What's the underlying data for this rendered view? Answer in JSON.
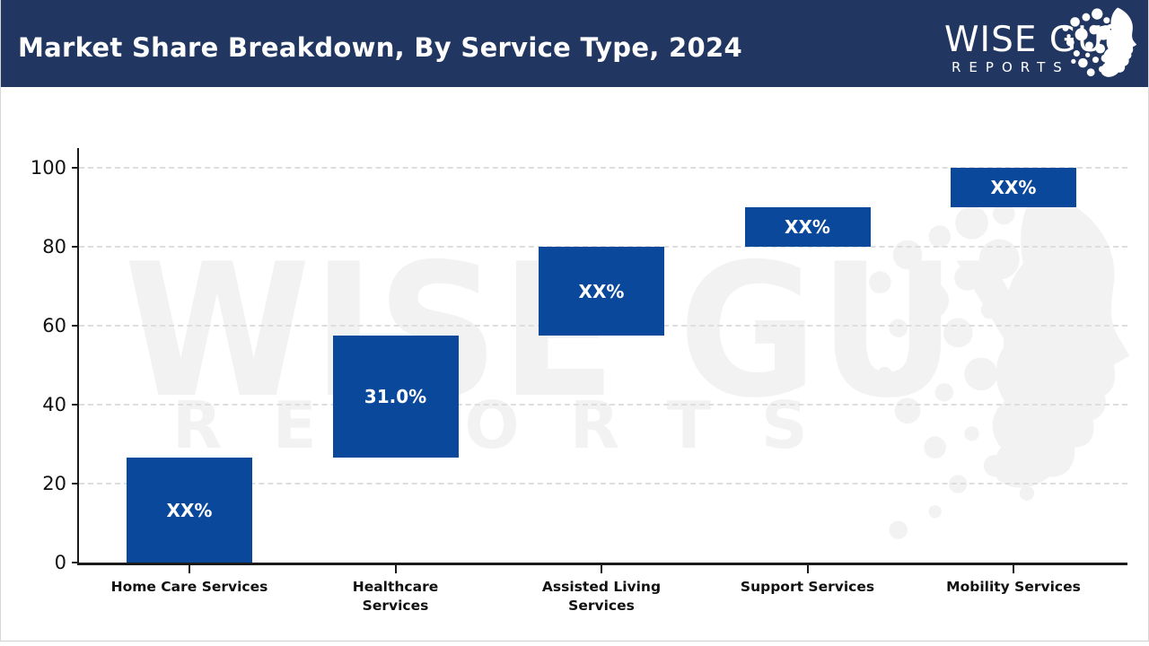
{
  "header": {
    "title": "Market Share Breakdown, By Service Type, 2024",
    "logo": {
      "primary": "WISE GUY",
      "secondary": "REPORTS",
      "face_icon": "dotted-head-profile"
    }
  },
  "watermark": {
    "line1": "WISE GUY",
    "line2": "REPORTS",
    "face_icon": "dotted-head-profile"
  },
  "chart_data": {
    "type": "bar",
    "subtype": "waterfall",
    "title": "Market Share Breakdown, By Service Type, 2024",
    "categories": [
      "Home Care Services",
      "Healthcare Services",
      "Assisted Living Services",
      "Support Services",
      "Mobility Services"
    ],
    "category_label_lines": [
      [
        "Home Care Services"
      ],
      [
        "Healthcare",
        "Services"
      ],
      [
        "Assisted Living",
        "Services"
      ],
      [
        "Support Services"
      ],
      [
        "Mobility Services"
      ]
    ],
    "segments": [
      {
        "category": "Home Care Services",
        "start": 0,
        "end": 26.5,
        "label": "XX%"
      },
      {
        "category": "Healthcare Services",
        "start": 26.5,
        "end": 57.5,
        "label": "31.0%"
      },
      {
        "category": "Assisted Living Services",
        "start": 57.5,
        "end": 80.0,
        "label": "XX%"
      },
      {
        "category": "Support Services",
        "start": 80.0,
        "end": 90.0,
        "label": "XX%"
      },
      {
        "category": "Mobility Services",
        "start": 90.0,
        "end": 100.0,
        "label": "XX%"
      }
    ],
    "yticks": [
      0,
      20,
      40,
      60,
      80,
      100
    ],
    "ylim": [
      0,
      105
    ],
    "xlabel": "",
    "ylabel": "",
    "grid": "horizontal dashed",
    "legend": "none"
  },
  "colors": {
    "header_bg": "#213761",
    "bar": "#0a489c",
    "bar_label": "#ffffff",
    "axis": "#1a1a1a",
    "grid": "#dedede",
    "watermark": "#f2f2f2",
    "title_text": "#ffffff"
  }
}
